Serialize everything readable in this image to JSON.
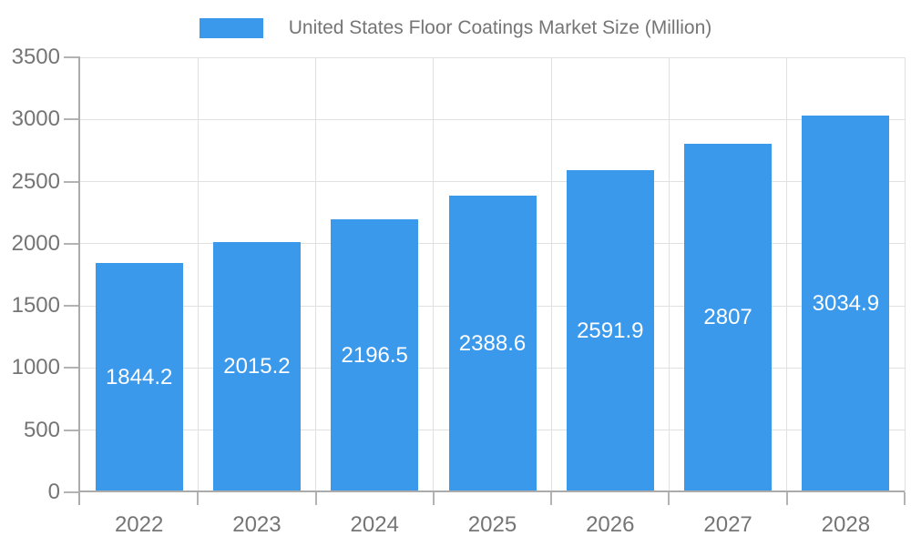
{
  "legend": {
    "label": "United States Floor Coatings Market Size (Million)"
  },
  "chart_data": {
    "type": "bar",
    "title": "United States Floor Coatings Market Size (Million)",
    "categories": [
      "2022",
      "2023",
      "2024",
      "2025",
      "2026",
      "2027",
      "2028"
    ],
    "values": [
      1844.2,
      2015.2,
      2196.5,
      2388.6,
      2591.9,
      2807,
      3034.9
    ],
    "data_labels": [
      "1844.2",
      "2015.2",
      "2196.5",
      "2388.6",
      "2591.9",
      "2807",
      "3034.9"
    ],
    "xlabel": "",
    "ylabel": "",
    "ylim": [
      0,
      3500
    ],
    "ytick_step": 500,
    "ytick_labels": [
      "0",
      "500",
      "1000",
      "1500",
      "2000",
      "2500",
      "3000",
      "3500"
    ],
    "grid": true,
    "legend_position": "top",
    "colors": {
      "bar": "#3B99EC",
      "grid": "#e0e0e0",
      "axis": "#ababab",
      "tick": "#b3b3b3",
      "axis_text": "#757575",
      "data_label_text": "#ffffff",
      "legend_text": "#757575",
      "background": "#ffffff"
    }
  }
}
